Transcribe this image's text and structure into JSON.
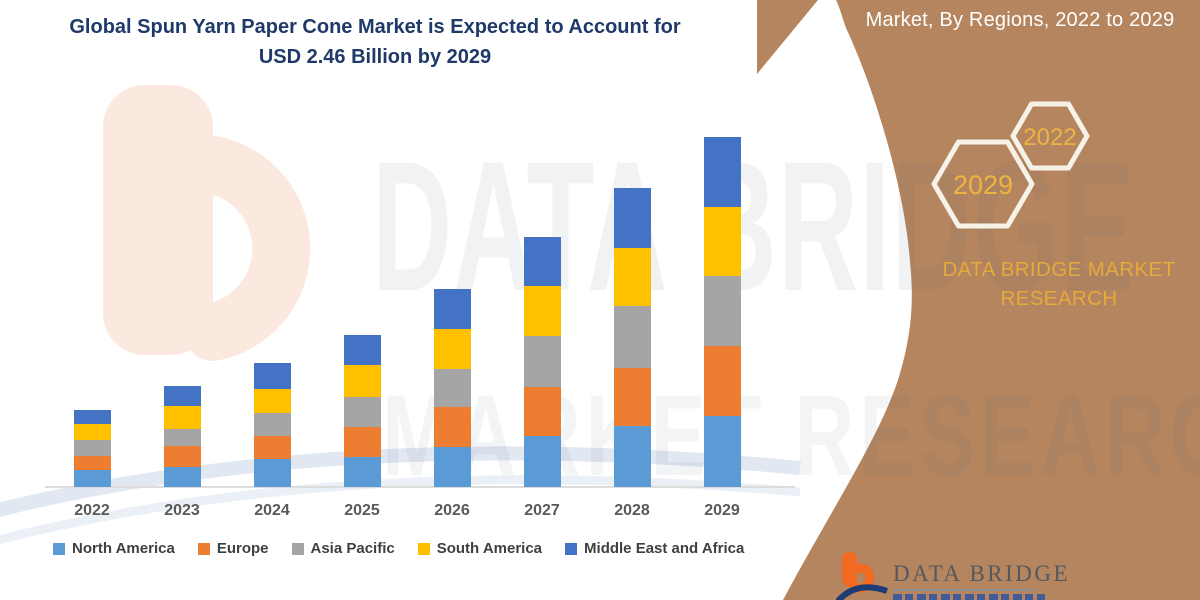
{
  "title": {
    "line1": "Global Spun Yarn Paper Cone Market is Expected to Account for",
    "line2": "USD 2.46 Billion by 2029"
  },
  "right_panel": {
    "header": "Market, By Regions, 2022 to 2029",
    "hexagons": [
      {
        "year": "2029"
      },
      {
        "year": "2022"
      }
    ],
    "brand_text": "DATA BRIDGE MARKET RESEARCH",
    "background_color": "#B4855E",
    "accent_gold": "#E4AA3C",
    "hexagon_outline": "#F7F2E8"
  },
  "watermark": {
    "line1": "DATA BRIDGE",
    "line2": "MARKET RESEARCH"
  },
  "footer_logo": {
    "brand": "DATA BRIDGE"
  },
  "chart_data": {
    "type": "bar",
    "stacked": true,
    "title": "Global Spun Yarn Paper Cone Market is Expected to Account for USD 2.46 Billion by 2029",
    "unit": "USD Billion",
    "categories": [
      "2022",
      "2023",
      "2024",
      "2025",
      "2026",
      "2027",
      "2028",
      "2029"
    ],
    "series": [
      {
        "name": "North America",
        "color": "#5B9BD5",
        "values": [
          0.12,
          0.14,
          0.2,
          0.21,
          0.28,
          0.36,
          0.43,
          0.5
        ]
      },
      {
        "name": "Europe",
        "color": "#ED7D31",
        "values": [
          0.1,
          0.15,
          0.16,
          0.21,
          0.28,
          0.34,
          0.41,
          0.49
        ]
      },
      {
        "name": "Asia Pacific",
        "color": "#A5A5A5",
        "values": [
          0.11,
          0.12,
          0.16,
          0.21,
          0.27,
          0.36,
          0.43,
          0.49
        ]
      },
      {
        "name": "South America",
        "color": "#FFC000",
        "values": [
          0.11,
          0.16,
          0.17,
          0.23,
          0.28,
          0.35,
          0.41,
          0.49
        ]
      },
      {
        "name": "Middle East and Africa",
        "color": "#4472C4",
        "values": [
          0.1,
          0.14,
          0.18,
          0.21,
          0.28,
          0.35,
          0.42,
          0.49
        ]
      }
    ],
    "totals": [
      0.54,
      0.71,
      0.87,
      1.07,
      1.39,
      1.76,
      2.1,
      2.46
    ],
    "xlabel": "",
    "ylabel": "",
    "y_axis_visible": false,
    "grid": false,
    "legend_position": "bottom",
    "values_estimated_from_pixels": true
  }
}
